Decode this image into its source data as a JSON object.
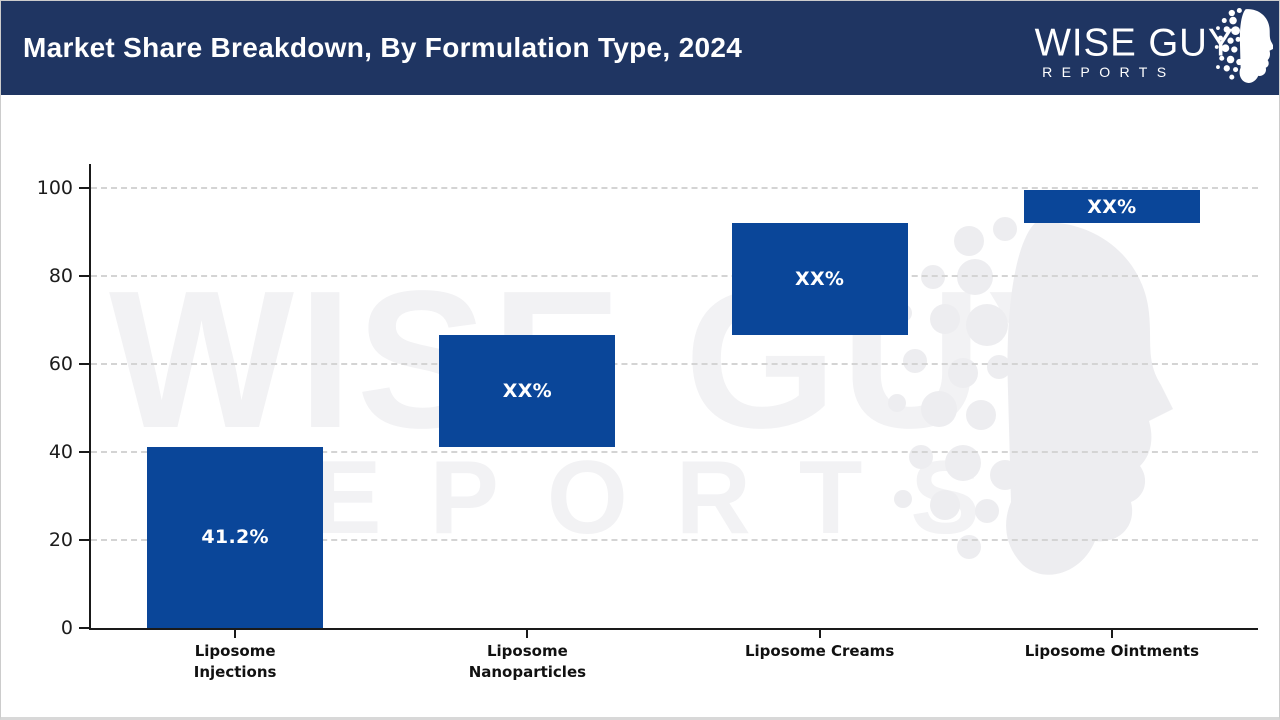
{
  "header": {
    "title": "Market Share Breakdown, By Formulation Type, 2024",
    "logo": {
      "name": "WISE GUY",
      "sub": "REPORTS"
    }
  },
  "watermark": {
    "line1": "WISE GUY",
    "line2": "REPORTS"
  },
  "colors": {
    "header_bg": "#1f3562",
    "bar": "#0a4699",
    "grid": "#d4d4d4",
    "axis": "#1a1a1a",
    "watermark": "#f2f2f4",
    "watermark_face": "#ededf0",
    "title_text": "#ffffff",
    "bar_label_text": "#ffffff"
  },
  "chart_data": {
    "type": "bar",
    "subtype": "floating-waterfall",
    "title": "Market Share Breakdown, By Formulation Type, 2024",
    "categories": [
      "Liposome\nInjections",
      "Liposome\nNanoparticles",
      "Liposome Creams",
      "Liposome Ointments"
    ],
    "segments": [
      {
        "category": "Liposome Injections",
        "start": 0,
        "end": 41.2,
        "label": "41.2%"
      },
      {
        "category": "Liposome Nanoparticles",
        "start": 41.2,
        "end": 66.5,
        "label": "XX%"
      },
      {
        "category": "Liposome Creams",
        "start": 66.5,
        "end": 92.0,
        "label": "XX%"
      },
      {
        "category": "Liposome Ointments",
        "start": 92.0,
        "end": 99.5,
        "label": "XX%"
      }
    ],
    "values_masked_as": "XX%",
    "yticks": [
      0,
      20,
      40,
      60,
      80,
      100
    ],
    "ylim": [
      0,
      105
    ],
    "xlabel": "",
    "ylabel": "",
    "grid": "horizontal-dashed",
    "legend": "none",
    "bar_color": "#0a4699"
  }
}
